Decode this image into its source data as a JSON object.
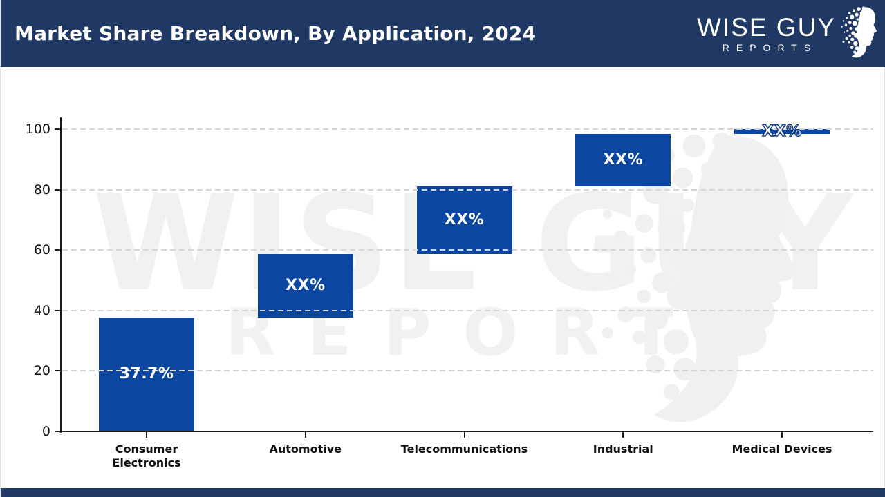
{
  "header": {
    "title": "Market Share Breakdown, By Application, 2024",
    "logo": {
      "line1": "WISE GUY",
      "line2": "REPORTS"
    }
  },
  "watermark": {
    "line1": "WISE GUY",
    "line2": "REPORTS"
  },
  "chart_data": {
    "type": "bar",
    "variant": "waterfall",
    "title": "Market Share Breakdown, By Application, 2024",
    "categories": [
      "Consumer Electronics",
      "Automotive",
      "Telecommunications",
      "Industrial",
      "Medical Devices"
    ],
    "segments": [
      {
        "category": "Consumer Electronics",
        "label": "37.7%",
        "start": 0,
        "end": 37.7
      },
      {
        "category": "Automotive",
        "label": "XX%",
        "start": 37.7,
        "end": 58.6
      },
      {
        "category": "Telecommunications",
        "label": "XX%",
        "start": 58.6,
        "end": 81.0
      },
      {
        "category": "Industrial",
        "label": "XX%",
        "start": 81.0,
        "end": 98.3
      },
      {
        "category": "Medical Devices",
        "label": "XX%",
        "start": 98.3,
        "end": 100.0
      }
    ],
    "xlabel": "",
    "ylabel": "",
    "ylim": [
      0,
      100
    ],
    "yticks": [
      0,
      20,
      40,
      60,
      80,
      100
    ],
    "grid": "horizontal-dashed",
    "legend": "none",
    "bar_color": "#0b46a1",
    "label_color": "#ffffff"
  },
  "colors": {
    "header_bg": "#1f3864",
    "footer_bg": "#1f3864",
    "bar": "#0b46a1",
    "gridline": "#d5d5d5",
    "axis": "#1a1a1a",
    "watermark": "#f0f0f0"
  }
}
